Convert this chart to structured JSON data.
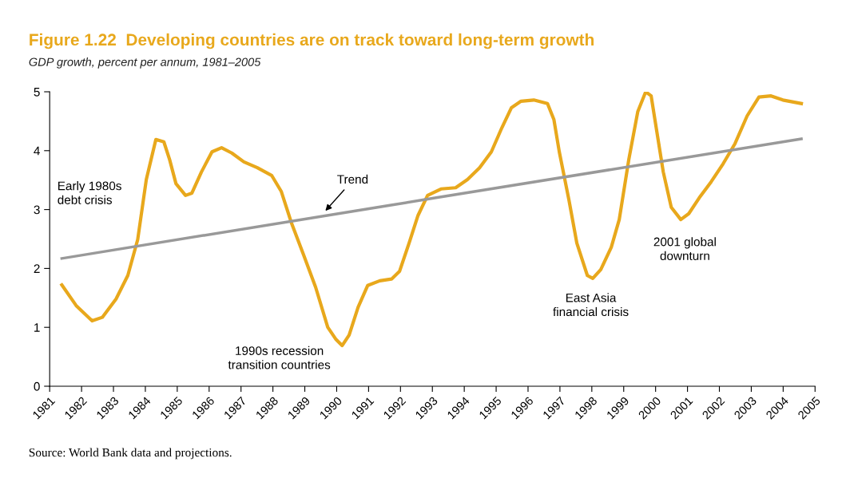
{
  "chart_data": {
    "type": "line",
    "title": "Figure 1.22  Developing countries are on track toward long-term growth",
    "subtitle": "GDP growth, percent per annum, 1981–2005",
    "xlim": [
      1981,
      2005
    ],
    "xticks": [
      1981,
      1982,
      1983,
      1984,
      1985,
      1986,
      1987,
      1988,
      1989,
      1990,
      1991,
      1992,
      1993,
      1994,
      1995,
      1996,
      1997,
      1998,
      1999,
      2000,
      2001,
      2002,
      2003,
      2004,
      2005
    ],
    "ylim": [
      0,
      5
    ],
    "yticks": [
      0,
      1,
      2,
      3,
      4,
      5
    ],
    "grid": false,
    "marker": "none",
    "line_style": "solid",
    "series": [
      {
        "color": "#e8a81c",
        "x": [
          1981.38,
          1981.83,
          1982.33,
          1982.65,
          1983.08,
          1983.45,
          1983.76,
          1984.03,
          1984.33,
          1984.58,
          1984.76,
          1984.96,
          1985.26,
          1985.46,
          1985.76,
          1986.09,
          1986.39,
          1986.71,
          1987.09,
          1987.51,
          1987.96,
          1988.26,
          1988.59,
          1988.97,
          1989.34,
          1989.72,
          1989.97,
          1990.17,
          1990.39,
          1990.67,
          1990.97,
          1991.35,
          1991.72,
          1991.97,
          1992.27,
          1992.55,
          1992.85,
          1993.27,
          1993.73,
          1994.1,
          1994.48,
          1994.85,
          1995.18,
          1995.48,
          1995.78,
          1996.18,
          1996.61,
          1996.81,
          1996.98,
          1997.28,
          1997.53,
          1997.86,
          1998.03,
          1998.28,
          1998.61,
          1998.86,
          1999.16,
          1999.44,
          1999.69,
          1999.86,
          2000.06,
          2000.24,
          2000.49,
          2000.79,
          2001.04,
          2001.37,
          2001.74,
          2002.12,
          2002.49,
          2002.87,
          2003.24,
          2003.62,
          2003.99,
          2004.57
        ],
        "values": [
          1.72,
          1.37,
          1.11,
          1.17,
          1.48,
          1.88,
          2.49,
          3.51,
          4.19,
          4.15,
          3.85,
          3.44,
          3.24,
          3.28,
          3.64,
          3.98,
          4.05,
          3.96,
          3.81,
          3.71,
          3.58,
          3.31,
          2.76,
          2.22,
          1.68,
          1.0,
          0.8,
          0.69,
          0.87,
          1.34,
          1.71,
          1.79,
          1.82,
          1.95,
          2.43,
          2.9,
          3.24,
          3.35,
          3.37,
          3.51,
          3.71,
          3.98,
          4.39,
          4.73,
          4.84,
          4.86,
          4.8,
          4.53,
          3.98,
          3.17,
          2.43,
          1.88,
          1.83,
          1.98,
          2.36,
          2.83,
          3.85,
          4.66,
          5.0,
          4.93,
          4.25,
          3.64,
          3.04,
          2.83,
          2.93,
          3.2,
          3.47,
          3.78,
          4.12,
          4.59,
          4.91,
          4.93,
          4.86,
          4.8
        ]
      },
      {
        "color": "#999999",
        "x": [
          1981.38,
          1993.0,
          2004.57
        ],
        "values": [
          2.17,
          3.19,
          4.2
        ]
      }
    ],
    "annotations": [
      "Early 1980s\ndebt crisis",
      {
        "text": "Trend",
        "x": 1989.6,
        "y": 2.95
      },
      "1990s recession\ntransition countries",
      "East Asia\nfinancial crisis",
      "2001 global\ndownturn",
      "Source: World Bank data and projections."
    ]
  }
}
